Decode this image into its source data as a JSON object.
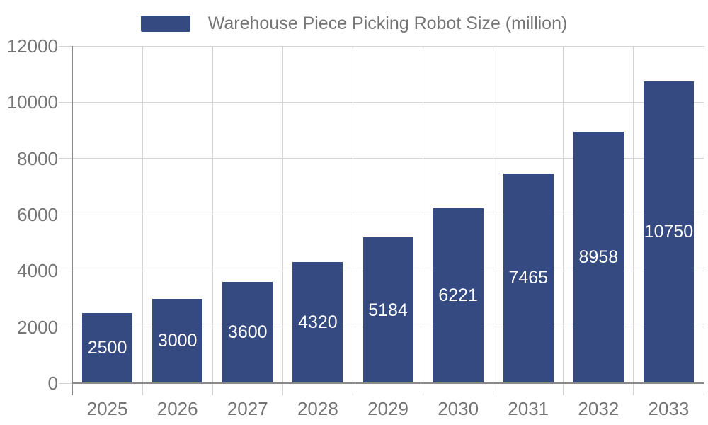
{
  "legend": {
    "label": "Warehouse Piece Picking Robot Size (million)"
  },
  "chart_data": {
    "type": "bar",
    "title": "Warehouse Piece Picking Robot Size (million)",
    "categories": [
      "2025",
      "2026",
      "2027",
      "2028",
      "2029",
      "2030",
      "2031",
      "2032",
      "2033"
    ],
    "values": [
      2500,
      3000,
      3600,
      4320,
      5184,
      6221,
      7465,
      8958,
      10750
    ],
    "xlabel": "",
    "ylabel": "",
    "ylim": [
      0,
      12000
    ],
    "ytick_step": 2000,
    "ytick_labels": [
      "0",
      "2000",
      "4000",
      "6000",
      "8000",
      "10000",
      "12000"
    ],
    "grid": true,
    "legend_position": "top-center",
    "value_label_position": "inside-center",
    "colors": {
      "bar": "#344a80",
      "bar_label": "#ffffff",
      "axis_label": "#757575",
      "legend_text": "#757575",
      "gridline": "#d4d4d4",
      "axis_line": "#8a8a8a",
      "background": "#ffffff"
    }
  }
}
